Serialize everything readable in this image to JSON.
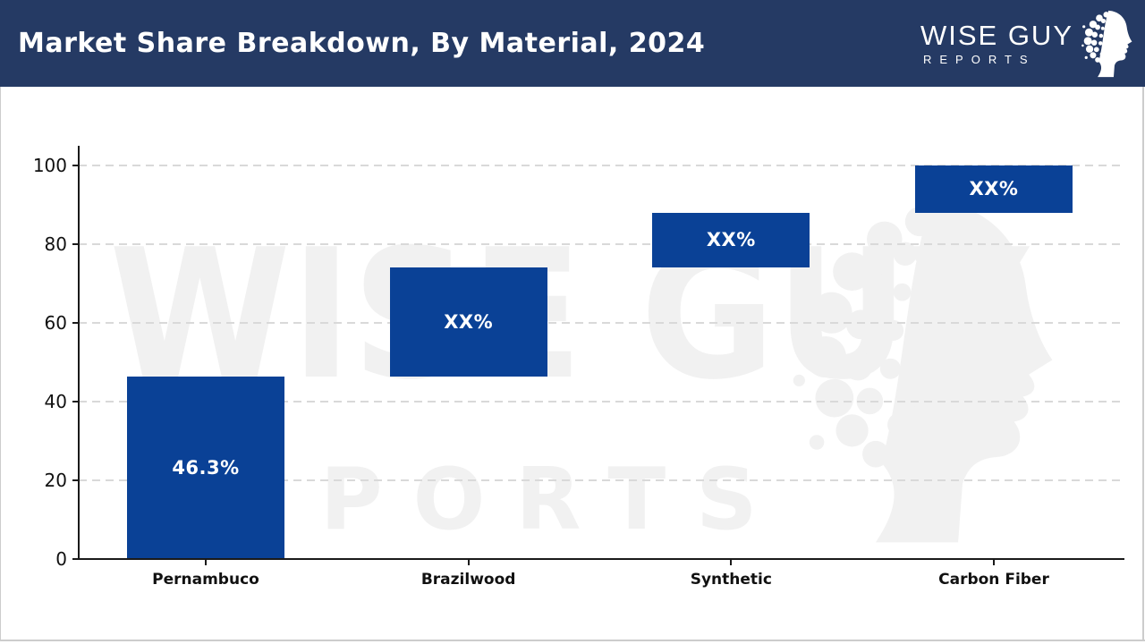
{
  "header": {
    "title": "Market Share Breakdown, By Material, 2024",
    "logo": {
      "line1": "WISE GUY",
      "line2": "REPORTS"
    }
  },
  "watermark": {
    "line1": "WISE GUY",
    "line2": "REPORTS"
  },
  "chart_data": {
    "type": "bar",
    "subtype": "waterfall",
    "title": "Market Share Breakdown, By Material, 2024",
    "xlabel": "",
    "ylabel": "",
    "categories": [
      "Pernambuco",
      "Brazilwood",
      "Synthetic",
      "Carbon Fiber"
    ],
    "segments": [
      {
        "category": "Pernambuco",
        "start": 0,
        "end": 46.3,
        "label": "46.3%"
      },
      {
        "category": "Brazilwood",
        "start": 46.3,
        "end": 74.1,
        "label": "XX%"
      },
      {
        "category": "Synthetic",
        "start": 74.1,
        "end": 88.0,
        "label": "XX%"
      },
      {
        "category": "Carbon Fiber",
        "start": 88.0,
        "end": 100.0,
        "label": "XX%"
      }
    ],
    "values_shown": [
      "46.3%",
      "XX%",
      "XX%",
      "XX%"
    ],
    "yticks": [
      0,
      20,
      40,
      60,
      80,
      100
    ],
    "ylim": [
      0,
      105
    ],
    "grid": "horizontal-dashed",
    "legend": "none"
  },
  "colors": {
    "header_bg": "#253a64",
    "bar": "#0a4196",
    "grid": "#d9d9d9",
    "axis": "#1a1a1a",
    "watermark": "#f1f1f1",
    "title_text": "#ffffff",
    "bar_label_text": "#ffffff"
  }
}
